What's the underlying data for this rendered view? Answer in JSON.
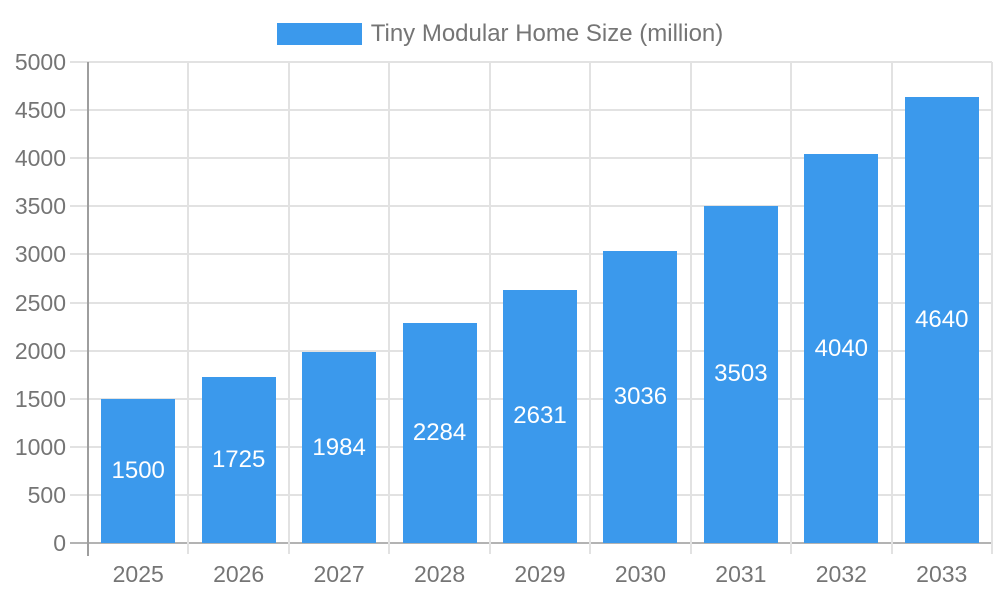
{
  "chart_data": {
    "type": "bar",
    "title": "Tiny Modular Home Size (million)",
    "legend_position": "top",
    "categories": [
      "2025",
      "2026",
      "2027",
      "2028",
      "2029",
      "2030",
      "2031",
      "2032",
      "2033"
    ],
    "values": [
      1500,
      1725,
      1984,
      2284,
      2631,
      3036,
      3503,
      4040,
      4640
    ],
    "bar_value_labels": [
      "1500",
      "1725",
      "1984",
      "2284",
      "2631",
      "3036",
      "3503",
      "4040",
      "4640"
    ],
    "xlabel": "",
    "ylabel": "",
    "ylim": [
      0,
      5000
    ],
    "yticks": [
      0,
      500,
      1000,
      1500,
      2000,
      2500,
      3000,
      3500,
      4000,
      4500,
      5000
    ],
    "grid": true,
    "bar_color": "#3b99ec",
    "bar_label_color": "#ffffff",
    "axis_text_color": "#757575",
    "grid_color": "#e2e2e2",
    "baseline_color": "#b3b3b3",
    "axis_line_color": "#9e9e9e"
  }
}
